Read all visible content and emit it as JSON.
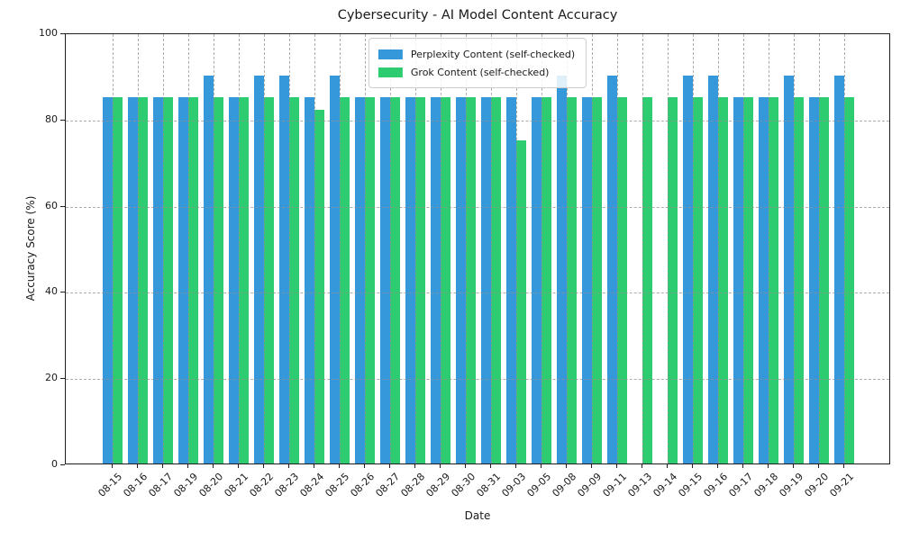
{
  "chart_data": {
    "type": "bar",
    "title": "Cybersecurity - AI Model Content Accuracy",
    "xlabel": "Date",
    "ylabel": "Accuracy Score (%)",
    "ylim": [
      0,
      100
    ],
    "yticks": [
      0,
      20,
      40,
      60,
      80,
      100
    ],
    "grid": true,
    "grid_style": "dashed",
    "legend_position": "upper center",
    "categories": [
      "08-15",
      "08-16",
      "08-17",
      "08-19",
      "08-20",
      "08-21",
      "08-22",
      "08-23",
      "08-24",
      "08-25",
      "08-26",
      "08-27",
      "08-28",
      "08-29",
      "08-30",
      "08-31",
      "09-03",
      "09-05",
      "09-08",
      "09-09",
      "09-11",
      "09-13",
      "09-14",
      "09-15",
      "09-16",
      "09-17",
      "09-18",
      "09-19",
      "09-20",
      "09-21"
    ],
    "series": [
      {
        "name": "Perplexity Content (self-checked)",
        "color": "#3498db",
        "values": [
          85,
          85,
          85,
          85,
          90,
          85,
          90,
          90,
          85,
          90,
          85,
          85,
          85,
          85,
          85,
          85,
          85,
          85,
          90,
          85,
          90,
          0,
          0,
          90,
          90,
          85,
          85,
          90,
          85,
          90
        ]
      },
      {
        "name": "Grok Content (self-checked)",
        "color": "#2ecc71",
        "values": [
          85,
          85,
          85,
          85,
          85,
          85,
          85,
          85,
          82,
          85,
          85,
          85,
          85,
          85,
          85,
          85,
          75,
          85,
          85,
          85,
          85,
          85,
          85,
          85,
          85,
          85,
          85,
          85,
          85,
          85
        ]
      }
    ]
  }
}
